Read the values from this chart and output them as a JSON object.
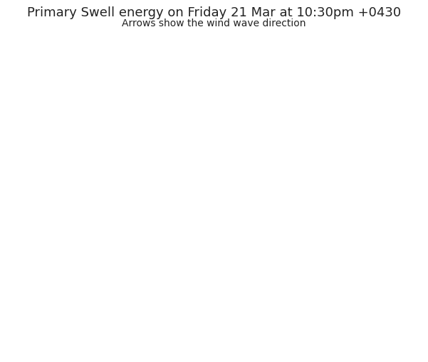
{
  "title": "Primary Swell energy on Friday 21 Mar at 10:30pm +0430",
  "subtitle": "Arrows show the wind wave direction",
  "title_fontsize": 13,
  "subtitle_fontsize": 10,
  "title_color": "#222222",
  "background_color": "#ffffff",
  "map_extent": [
    43.0,
    83.0,
    22.0,
    47.0
  ],
  "border_color": "#000000",
  "border_linewidth": 0.6,
  "water_color": "#000000",
  "land_color_base": "#aaaaaa",
  "fig_width": 6.01,
  "fig_height": 5.1,
  "dpi": 100
}
